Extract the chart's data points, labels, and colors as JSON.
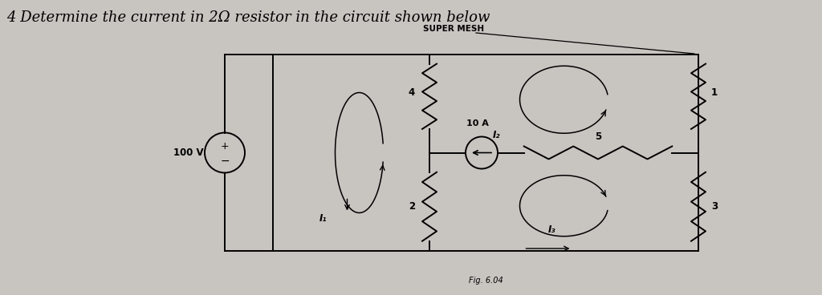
{
  "title": "4 Determine the current in 2Ω resistor in the circuit shown below",
  "bg_color": "#c8c4c0",
  "fig_label": "Fig. 6.04",
  "supermesh_label": "SUPER MESH",
  "voltage_source": "100 V",
  "current_source": "10 A",
  "res_labels": [
    "4",
    "2",
    "5",
    "1",
    "3"
  ],
  "mesh_labels": [
    "I₁",
    "I₂",
    "I₃"
  ],
  "title_fontsize": 13,
  "label_fontsize": 8.5,
  "lw": 1.4
}
